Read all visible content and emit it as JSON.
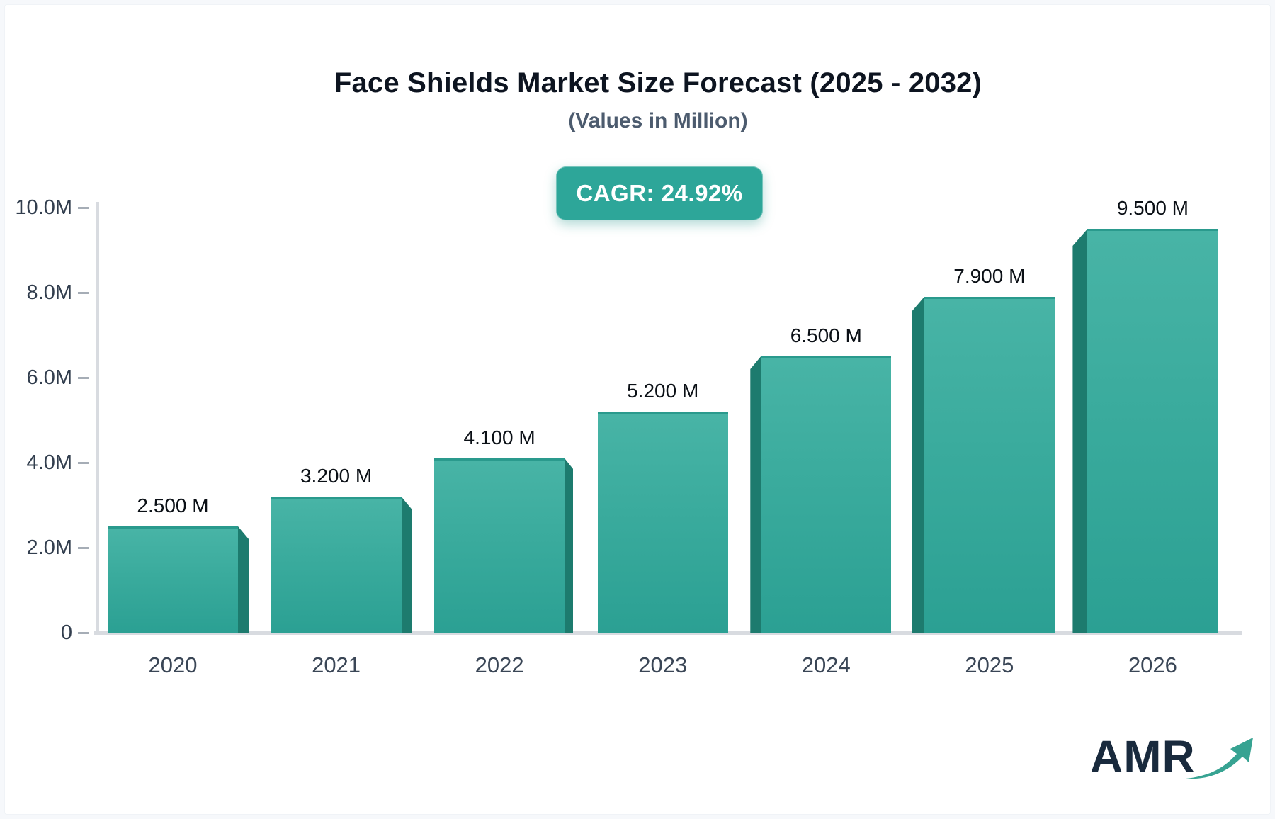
{
  "header": {
    "title": "Face Shields Market Size Forecast (2025 - 2032)",
    "subtitle": "(Values in Million)",
    "cagr_badge": "CAGR: 24.92%",
    "badge_color": "#2da699"
  },
  "logo": {
    "text": "AMR",
    "arrow_icon": "growth-arrow-icon",
    "text_color": "#192a3d",
    "arrow_color": "#37a392"
  },
  "chart_data": {
    "type": "bar",
    "categories": [
      "2020",
      "2021",
      "2022",
      "2023",
      "2024",
      "2025",
      "2026"
    ],
    "values": [
      2.5,
      3.2,
      4.1,
      5.2,
      6.5,
      7.9,
      9.5
    ],
    "value_labels": [
      "2.500 M",
      "3.200 M",
      "4.100 M",
      "5.200 M",
      "6.500 M",
      "7.900 M",
      "9.500 M"
    ],
    "title": "Face Shields Market Size Forecast (2025 - 2032)",
    "subtitle": "(Values in Million)",
    "xlabel": "",
    "ylabel": "",
    "unit": "Million",
    "ylim": [
      0,
      10
    ],
    "yticks": [
      {
        "label": "10.0M",
        "value": 10
      },
      {
        "label": "8.0M",
        "value": 8
      },
      {
        "label": "6.0M",
        "value": 6
      },
      {
        "label": "4.0M",
        "value": 4
      },
      {
        "label": "2.0M",
        "value": 2
      },
      {
        "label": "0",
        "value": 0
      }
    ],
    "grid": false,
    "legend": false,
    "style": "3d-bars",
    "bar_color_top": "#48b4a6",
    "bar_color_bottom": "#2ba093",
    "bar_side_color": "#1d7b6e",
    "axis_color": "#d8dbe0"
  }
}
